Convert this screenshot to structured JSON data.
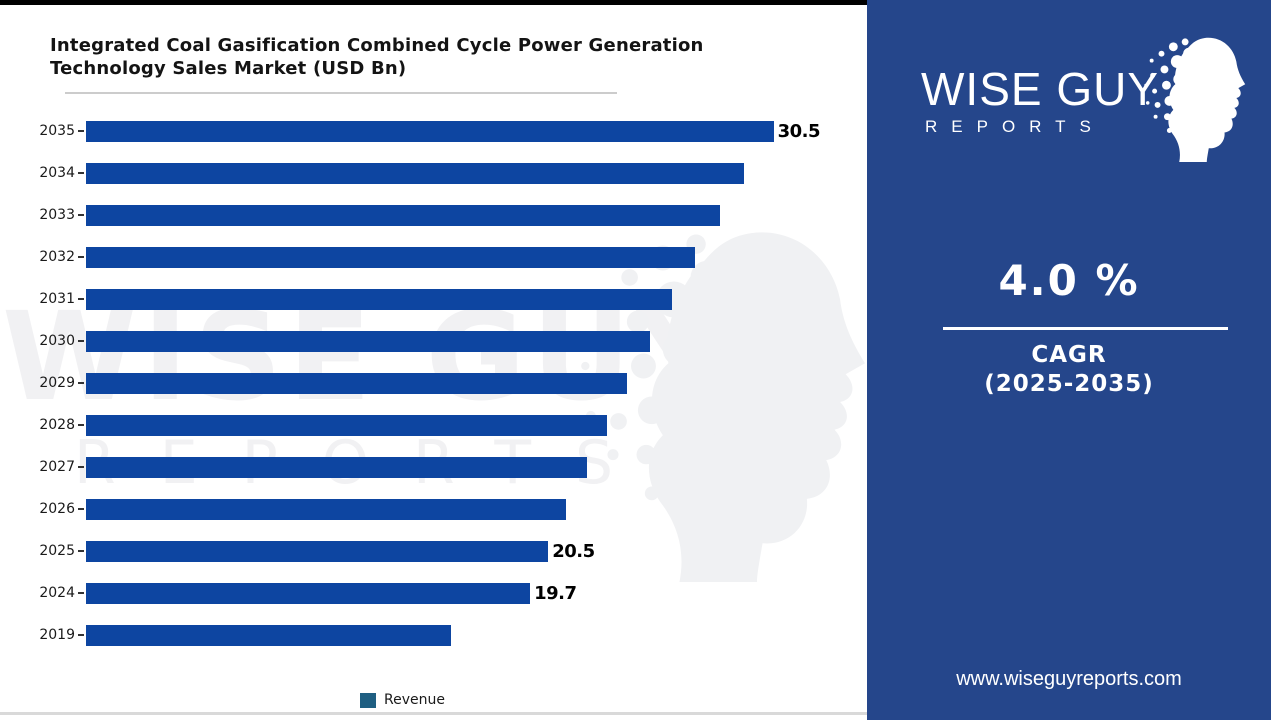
{
  "title": {
    "text": "Integrated Coal Gasification Combined Cycle Power Generation Technology Sales Market (USD Bn)"
  },
  "chart_data": {
    "type": "bar",
    "orientation": "horizontal",
    "title": "Integrated Coal Gasification Combined Cycle Power Generation Technology Sales Market (USD Bn)",
    "xlabel": "",
    "ylabel": "",
    "categories": [
      "2035",
      "2034",
      "2033",
      "2032",
      "2031",
      "2030",
      "2029",
      "2028",
      "2027",
      "2026",
      "2025",
      "2024",
      "2019"
    ],
    "series": [
      {
        "name": "Revenue",
        "values": [
          30.5,
          29.2,
          28.1,
          27.0,
          26.0,
          25.0,
          24.0,
          23.1,
          22.2,
          21.3,
          20.5,
          19.7,
          16.2
        ]
      }
    ],
    "data_labels": [
      "30.5",
      "",
      "",
      "",
      "",
      "",
      "",
      "",
      "",
      "",
      "20.5",
      "19.7",
      ""
    ],
    "xlim": [
      0,
      33
    ],
    "grid": false,
    "legend": {
      "label": "Revenue",
      "position": "bottom"
    }
  },
  "watermark": {
    "line1": "WISE GUY",
    "line2": "REPORTS"
  },
  "sidebar": {
    "logo_line1": "WISE GUY",
    "logo_line2": "REPORTS",
    "cagr_value": "4.0 %",
    "cagr_line1": "CAGR",
    "cagr_line2": "(2025-2035)",
    "website": "www.wiseguyreports.com"
  },
  "colors": {
    "bar": "#0d45a1",
    "sidebar_bg": "#25468b",
    "legend_swatch": "#1f5f82",
    "top_border": "#000000"
  }
}
